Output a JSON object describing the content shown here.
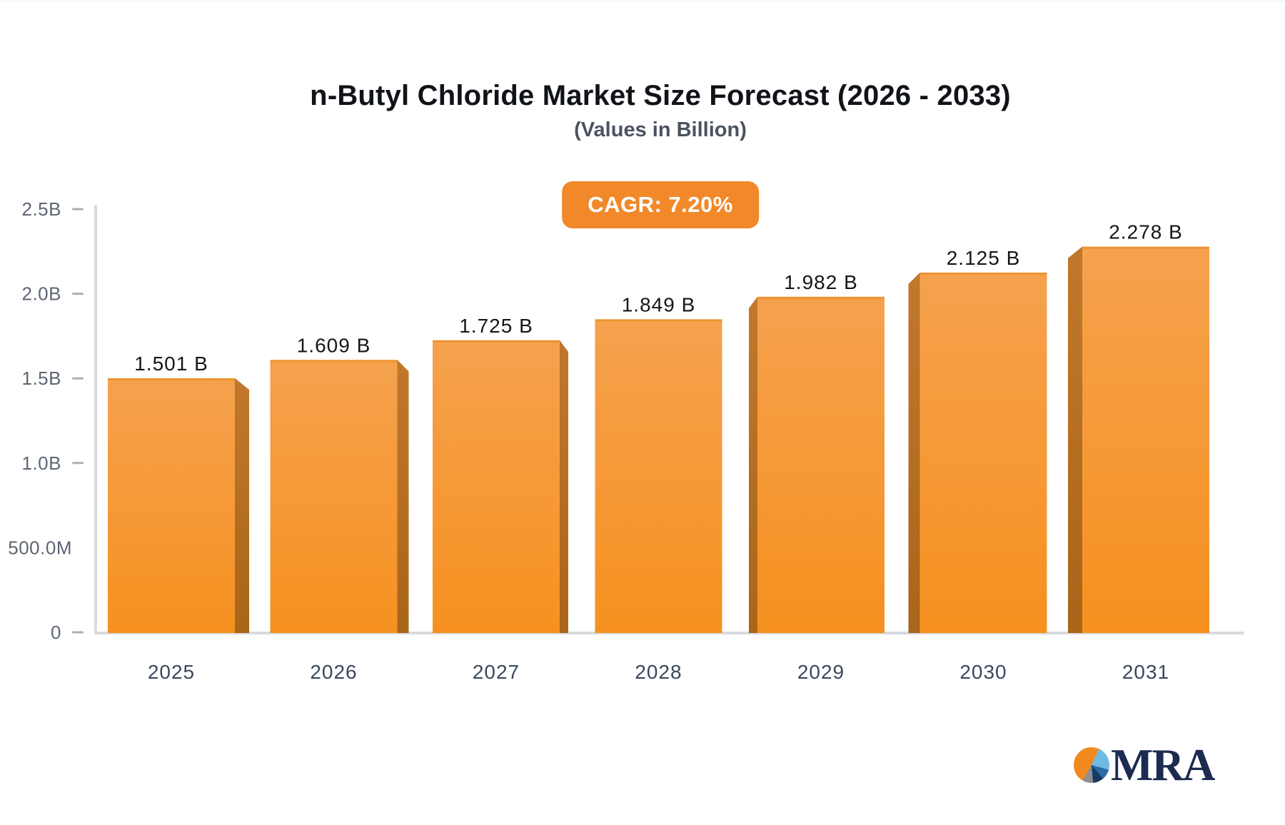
{
  "header": {
    "title": "n-Butyl Chloride Market Size Forecast (2026 - 2033)",
    "subtitle": "(Values in Billion)"
  },
  "badge": {
    "label": "CAGR: 7.20%",
    "background": "#f1892a",
    "text_color": "#ffffff"
  },
  "chart_data": {
    "type": "bar",
    "style": "3d-column",
    "title": "n-Butyl Chloride Market Size Forecast (2026 - 2033)",
    "subtitle": "(Values in Billion)",
    "cagr_annotation": "CAGR: 7.20%",
    "categories": [
      "2025",
      "2026",
      "2027",
      "2028",
      "2029",
      "2030",
      "2031"
    ],
    "values": [
      1.501,
      1.609,
      1.725,
      1.849,
      1.982,
      2.125,
      2.278
    ],
    "value_labels": [
      "1.501 B",
      "1.609 B",
      "1.725 B",
      "1.849 B",
      "1.982 B",
      "2.125 B",
      "2.278 B"
    ],
    "xlabel": "",
    "ylabel": "",
    "ylim": [
      0,
      2.5
    ],
    "grid": false,
    "legend": false,
    "y_ticks": [
      {
        "label": "2.5B",
        "value": 2.5,
        "dash": true
      },
      {
        "label": "2.0B",
        "value": 2.0,
        "dash": true
      },
      {
        "label": "1.5B",
        "value": 1.5,
        "dash": true
      },
      {
        "label": "1.0B",
        "value": 1.0,
        "dash": true
      },
      {
        "label": "500.0M",
        "value": 0.5,
        "dash": false
      },
      {
        "label": "0",
        "value": 0.0,
        "dash": true
      }
    ],
    "colors": {
      "bar_face_top": "#f5a14e",
      "bar_face_bottom": "#f69120",
      "bar_face_top_edge": "#ed9332",
      "bar_side_top": "#c1782c",
      "bar_side_bottom": "#a96519",
      "axis_line": "#d8dade",
      "tick_dash": "#aab0ba",
      "y_tick_text": "#5d6673",
      "x_tick_text": "#3b485c",
      "value_label_text": "#13171c"
    }
  },
  "logo": {
    "text": "MRA",
    "pie_colors": [
      "#f18a1e",
      "#6fbbe3",
      "#2c6ca3",
      "#173a62",
      "#8e9094"
    ]
  }
}
